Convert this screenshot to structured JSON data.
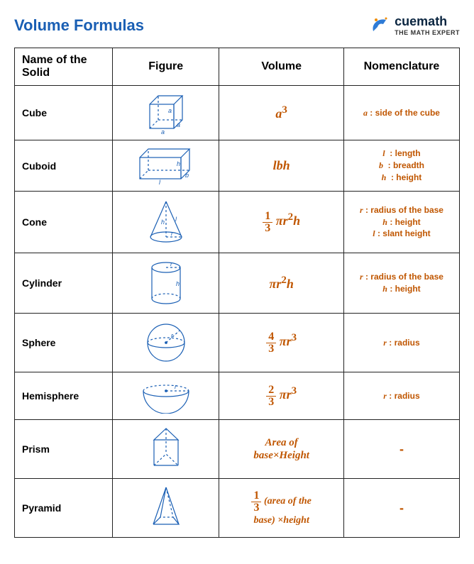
{
  "title": "Volume Formulas",
  "logo": {
    "main": "cuemath",
    "sub": "THE MATH EXPERT"
  },
  "columns": [
    "Name of the Solid",
    "Figure",
    "Volume",
    "Nomenclature"
  ],
  "style": {
    "stroke_color": "#1a5fb4",
    "formula_color": "#c05600",
    "border_color": "#222222",
    "background_color": "#ffffff",
    "stroke_width": 1.2,
    "dash": "3,3"
  },
  "solids": [
    {
      "name": "Cube",
      "nomen": "<span class='v'>a</span> : side of the cube"
    },
    {
      "name": "Cuboid",
      "nomen": "<span class='v'>l</span>&nbsp; : length<br><span class='v'>b</span>&nbsp; : breadth<br><span class='v'>h</span>&nbsp; : height"
    },
    {
      "name": "Cone",
      "nomen": "<span class='v'>r</span> : radius of the base<br><span class='v'>h</span> : height<br><span class='v'>l</span> : slant height"
    },
    {
      "name": "Cylinder",
      "nomen": "<span class='v'>r</span> : radius of the base<br><span class='v'>h</span> : height"
    },
    {
      "name": "Sphere",
      "nomen": "<span class='v'>r</span> : radius"
    },
    {
      "name": "Hemisphere",
      "nomen": "<span class='v'>r</span> : radius"
    },
    {
      "name": "Prism",
      "nomen": "-"
    },
    {
      "name": "Pyramid",
      "nomen": "-"
    }
  ]
}
